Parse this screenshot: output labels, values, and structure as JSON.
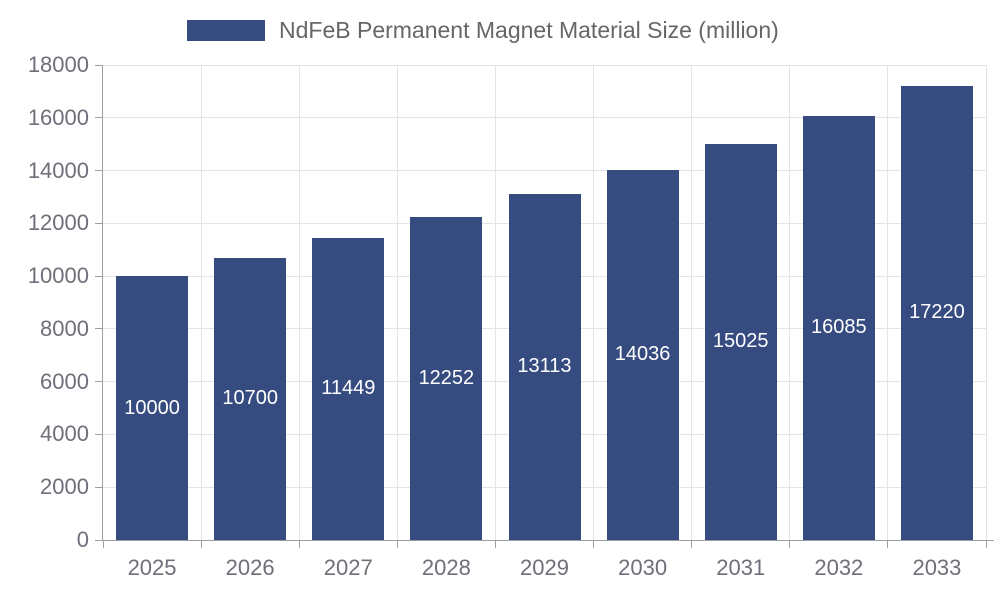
{
  "chart_data": {
    "type": "bar",
    "title": "NdFeB Permanent Magnet Material Size (million)",
    "legend": {
      "label": "NdFeB Permanent Magnet Material Size (million)",
      "position": "top"
    },
    "categories": [
      "2025",
      "2026",
      "2027",
      "2028",
      "2029",
      "2030",
      "2031",
      "2032",
      "2033"
    ],
    "values": [
      10000,
      10700,
      11449,
      12252,
      13113,
      14036,
      15025,
      16085,
      17220
    ],
    "xlabel": "",
    "ylabel": "",
    "ylim": [
      0,
      18000
    ],
    "ytick_step": 2000,
    "grid": true,
    "colors": {
      "bar_fill": "#364b80",
      "bar_value_label": "#ffffff",
      "legend_text": "#666666",
      "axis_tick_label": "#6e7079",
      "grid_line": "#e2e4ea",
      "axis_line": "#9aa0a6"
    }
  }
}
